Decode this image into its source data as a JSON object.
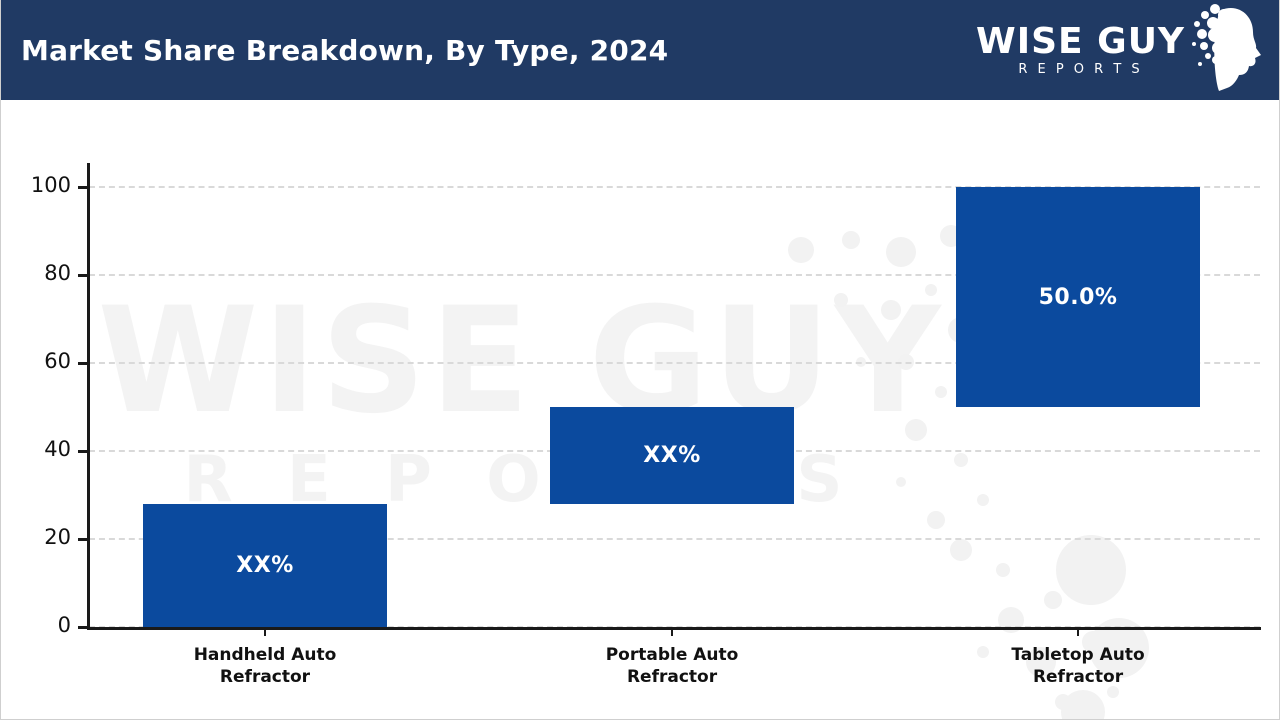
{
  "header": {
    "title": "Market Share Breakdown, By Type, 2024",
    "background_color": "#203a64",
    "logo": {
      "line1": "WISE GUY",
      "line2": "R E P O R T S",
      "head_icon": "dotted-face-profile-icon"
    }
  },
  "watermark": {
    "line1": "WISE GUY",
    "line2": "R E P O R T S",
    "decoration": "dotted-face-profile"
  },
  "chart_data": {
    "type": "bar",
    "subtype": "floating-segment-bars",
    "title": "Market Share Breakdown, By Type, 2024",
    "categories": [
      "Handheld Auto\nRefractor",
      "Portable Auto\nRefractor",
      "Tabletop Auto\nRefractor"
    ],
    "segments": [
      {
        "category": "Handheld Auto Refractor",
        "start": 0,
        "end": 28,
        "label": "XX%"
      },
      {
        "category": "Portable Auto Refractor",
        "start": 28,
        "end": 50,
        "label": "XX%"
      },
      {
        "category": "Tabletop Auto Refractor",
        "start": 50,
        "end": 100,
        "label": "50.0%"
      }
    ],
    "xlabel": "",
    "ylabel": "",
    "ylim": [
      0,
      105
    ],
    "yticks": [
      0,
      20,
      40,
      60,
      80,
      100
    ],
    "grid": "horizontal-dashed",
    "grid_color": "#d9d9d9",
    "bar_color": "#0b4a9e",
    "bar_label_color": "#ffffff",
    "axis_color": "#1a1a1a",
    "legend": "none"
  }
}
